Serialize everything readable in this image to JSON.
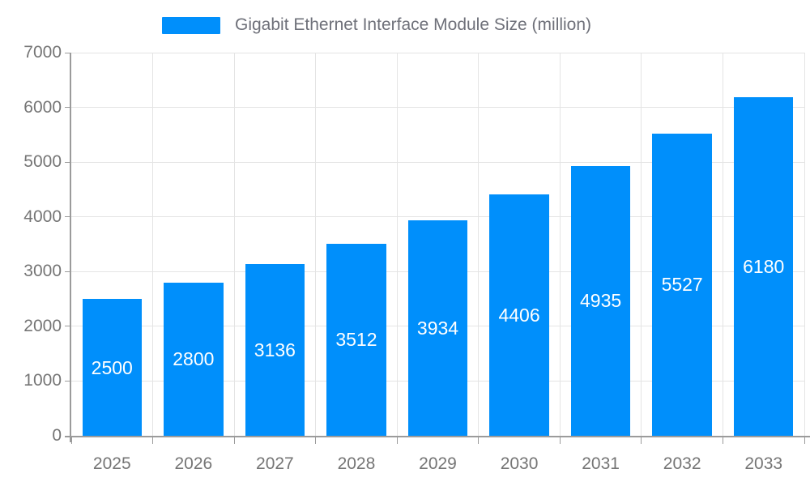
{
  "chart_data": {
    "type": "bar",
    "title": "Gigabit Ethernet Interface Module Size (million)",
    "categories": [
      "2025",
      "2026",
      "2027",
      "2028",
      "2029",
      "2030",
      "2031",
      "2032",
      "2033"
    ],
    "values": [
      2500,
      2800,
      3136,
      3512,
      3934,
      4406,
      4935,
      5527,
      6180
    ],
    "xlabel": "",
    "ylabel": "",
    "ylim": [
      0,
      7000
    ],
    "ytick_step": 1000,
    "ytick_labels": [
      "0",
      "1000",
      "2000",
      "3000",
      "4000",
      "5000",
      "6000",
      "7000"
    ],
    "grid": true,
    "legend": {
      "label": "Gigabit Ethernet Interface Module Size (million)",
      "position": "top"
    },
    "colors": {
      "bar": "#008FFB",
      "bar_label": "#FFFFFF",
      "axis_label": "#757575",
      "legend_text": "#6E7079",
      "gridline": "#E4E4E4",
      "axis_line": "#9B9B9B"
    }
  }
}
